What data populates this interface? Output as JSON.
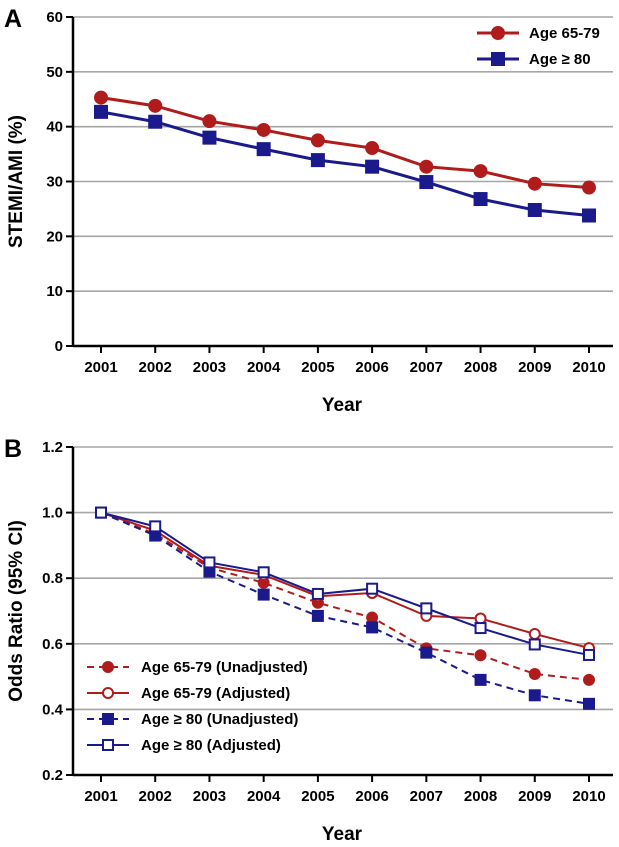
{
  "chart_data": [
    {
      "panel": "A",
      "type": "line",
      "xlabel": "Year",
      "ylabel": "STEMI/AMI (%)",
      "ylim": [
        0,
        60
      ],
      "yticks": [
        0,
        10,
        20,
        30,
        40,
        50,
        60
      ],
      "categories": [
        "2001",
        "2002",
        "2003",
        "2004",
        "2005",
        "2006",
        "2007",
        "2008",
        "2009",
        "2010"
      ],
      "grid": true,
      "legend_position": "top-right",
      "series": [
        {
          "name": "Age 65-79",
          "color": "#b01c1c",
          "marker": "circle",
          "filled": true,
          "dashed": false,
          "values": [
            45.3,
            43.8,
            41.0,
            39.4,
            37.5,
            36.1,
            32.7,
            31.9,
            29.6,
            28.9
          ]
        },
        {
          "name": "Age ≥ 80",
          "color": "#1a1a8c",
          "marker": "square",
          "filled": true,
          "dashed": false,
          "values": [
            42.7,
            40.9,
            38.0,
            35.9,
            33.9,
            32.7,
            29.9,
            26.8,
            24.8,
            23.8
          ]
        }
      ]
    },
    {
      "panel": "B",
      "type": "line",
      "xlabel": "Year",
      "ylabel": "Odds Ratio (95% CI)",
      "ylim": [
        0.2,
        1.2
      ],
      "yticks": [
        0.2,
        0.4,
        0.6,
        0.8,
        1.0,
        1.2
      ],
      "categories": [
        "2001",
        "2002",
        "2003",
        "2004",
        "2005",
        "2006",
        "2007",
        "2008",
        "2009",
        "2010"
      ],
      "grid": true,
      "legend_position": "bottom-left",
      "series": [
        {
          "name": "Age 65-79 (Unadjusted)",
          "color": "#b01c1c",
          "marker": "circle",
          "filled": true,
          "dashed": true,
          "values": [
            1.0,
            0.935,
            0.832,
            0.786,
            0.725,
            0.68,
            0.586,
            0.565,
            0.508,
            0.49
          ]
        },
        {
          "name": "Age 65-79 (Adjusted)",
          "color": "#b01c1c",
          "marker": "circle",
          "filled": false,
          "dashed": false,
          "values": [
            1.0,
            0.945,
            0.838,
            0.81,
            0.745,
            0.755,
            0.685,
            0.677,
            0.63,
            0.587
          ]
        },
        {
          "name": "Age ≥ 80 (Unadjusted)",
          "color": "#1a1a8c",
          "marker": "square",
          "filled": true,
          "dashed": true,
          "values": [
            1.0,
            0.93,
            0.82,
            0.75,
            0.685,
            0.65,
            0.573,
            0.49,
            0.443,
            0.417
          ]
        },
        {
          "name": "Age ≥ 80 (Adjusted)",
          "color": "#1a1a8c",
          "marker": "square",
          "filled": false,
          "dashed": false,
          "values": [
            1.0,
            0.958,
            0.848,
            0.818,
            0.752,
            0.768,
            0.708,
            0.648,
            0.598,
            0.566
          ]
        }
      ]
    }
  ]
}
